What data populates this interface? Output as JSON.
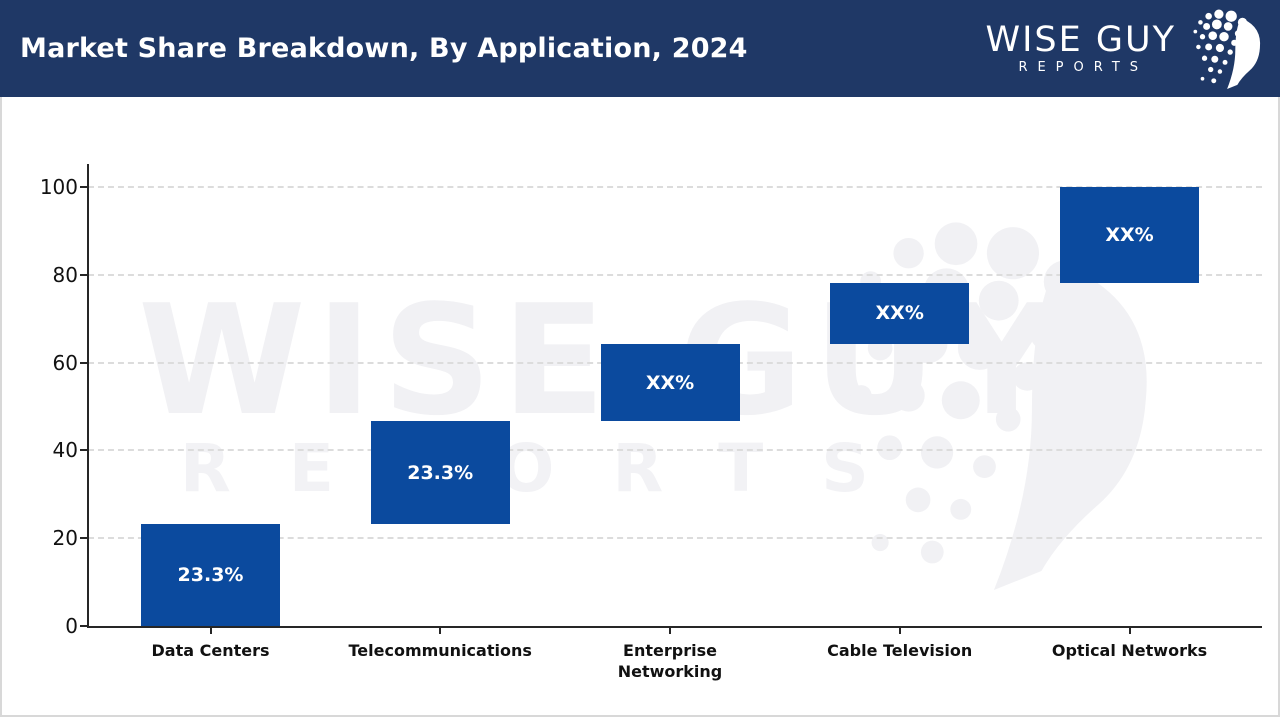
{
  "header": {
    "title": "Market Share Breakdown, By Application, 2024",
    "logo": {
      "line1": "WISE GUY",
      "line2": "REPORTS"
    }
  },
  "watermark": {
    "line1": "WISE GUY",
    "line2": "REPORTS"
  },
  "colors": {
    "header_bg": "#1f3866",
    "bar": "#0b4a9e",
    "axis": "#262626",
    "gridline": "#dcdcdc",
    "bar_label_text": "#ffffff",
    "watermark": "#f1f1f4"
  },
  "chart_data": {
    "type": "bar",
    "subtype": "waterfall-stacked",
    "title": "Market Share Breakdown, By Application, 2024",
    "categories": [
      "Data Centers",
      "Telecommunications",
      "Enterprise Networking",
      "Cable Television",
      "Optical Networks"
    ],
    "segments": [
      {
        "category": "Data Centers",
        "start": 0,
        "end": 23.3,
        "label": "23.3%"
      },
      {
        "category": "Telecommunications",
        "start": 23.3,
        "end": 46.6,
        "label": "23.3%"
      },
      {
        "category": "Enterprise Networking",
        "start": 46.6,
        "end": 64.3,
        "label": "XX%"
      },
      {
        "category": "Cable Television",
        "start": 64.3,
        "end": 78.2,
        "label": "XX%"
      },
      {
        "category": "Optical Networks",
        "start": 78.2,
        "end": 100,
        "label": "XX%"
      }
    ],
    "bar_labels": [
      "23.3%",
      "23.3%",
      "XX%",
      "XX%",
      "XX%"
    ],
    "yticks": [
      0,
      20,
      40,
      60,
      80,
      100
    ],
    "ylim": [
      0,
      105
    ],
    "xlabel": "",
    "ylabel": "",
    "grid": "horizontal-dashed",
    "legend": "none"
  }
}
